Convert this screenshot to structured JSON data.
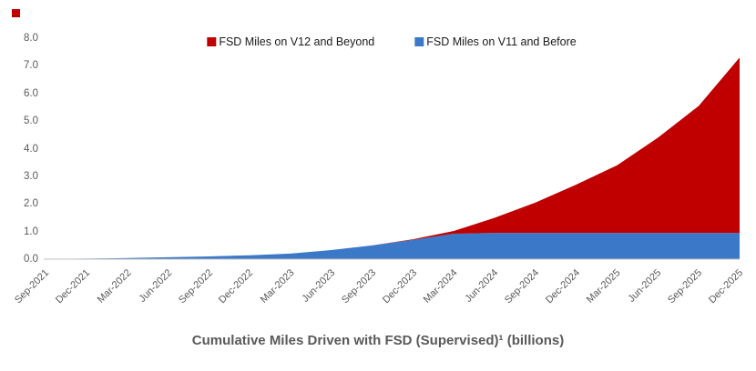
{
  "colors": {
    "corner_mark": "#C00000",
    "axis_line": "#BFBFBF",
    "axis_text": "#595959",
    "legend_text": "#1a1a1a",
    "title_text": "#595959"
  },
  "chart_data": {
    "type": "area",
    "stacked": true,
    "title": "Cumulative Miles Driven with FSD (Supervised)¹ (billions)",
    "xlabel": "",
    "ylabel": "",
    "ylim": [
      0,
      8
    ],
    "grid": false,
    "legend_position": "top-center",
    "y_ticks": [
      "8.0",
      "7.0",
      "6.0",
      "5.0",
      "4.0",
      "3.0",
      "2.0",
      "1.0",
      "0.0"
    ],
    "categories": [
      "Sep-2021",
      "Dec-2021",
      "Mar-2022",
      "Jun-2022",
      "Sep-2022",
      "Dec-2022",
      "Mar-2023",
      "Jun-2023",
      "Sep-2023",
      "Dec-2023",
      "Mar-2024",
      "Jun-2024",
      "Sep-2024",
      "Dec-2024",
      "Mar-2025",
      "Jun-2025",
      "Sep-2025",
      "Dec-2025"
    ],
    "series": [
      {
        "name": "FSD Miles on V12 and Beyond",
        "color": "#C00000",
        "values": [
          0,
          0,
          0,
          0,
          0,
          0,
          0,
          0,
          0,
          0.02,
          0.1,
          0.55,
          1.1,
          1.75,
          2.45,
          3.45,
          4.6,
          6.35
        ]
      },
      {
        "name": "FSD Miles on V11 and Before",
        "color": "#3B78C8",
        "values": [
          0.01,
          0.02,
          0.04,
          0.07,
          0.1,
          0.14,
          0.2,
          0.33,
          0.5,
          0.7,
          0.92,
          0.95,
          0.95,
          0.95,
          0.95,
          0.95,
          0.95,
          0.95
        ]
      }
    ]
  }
}
